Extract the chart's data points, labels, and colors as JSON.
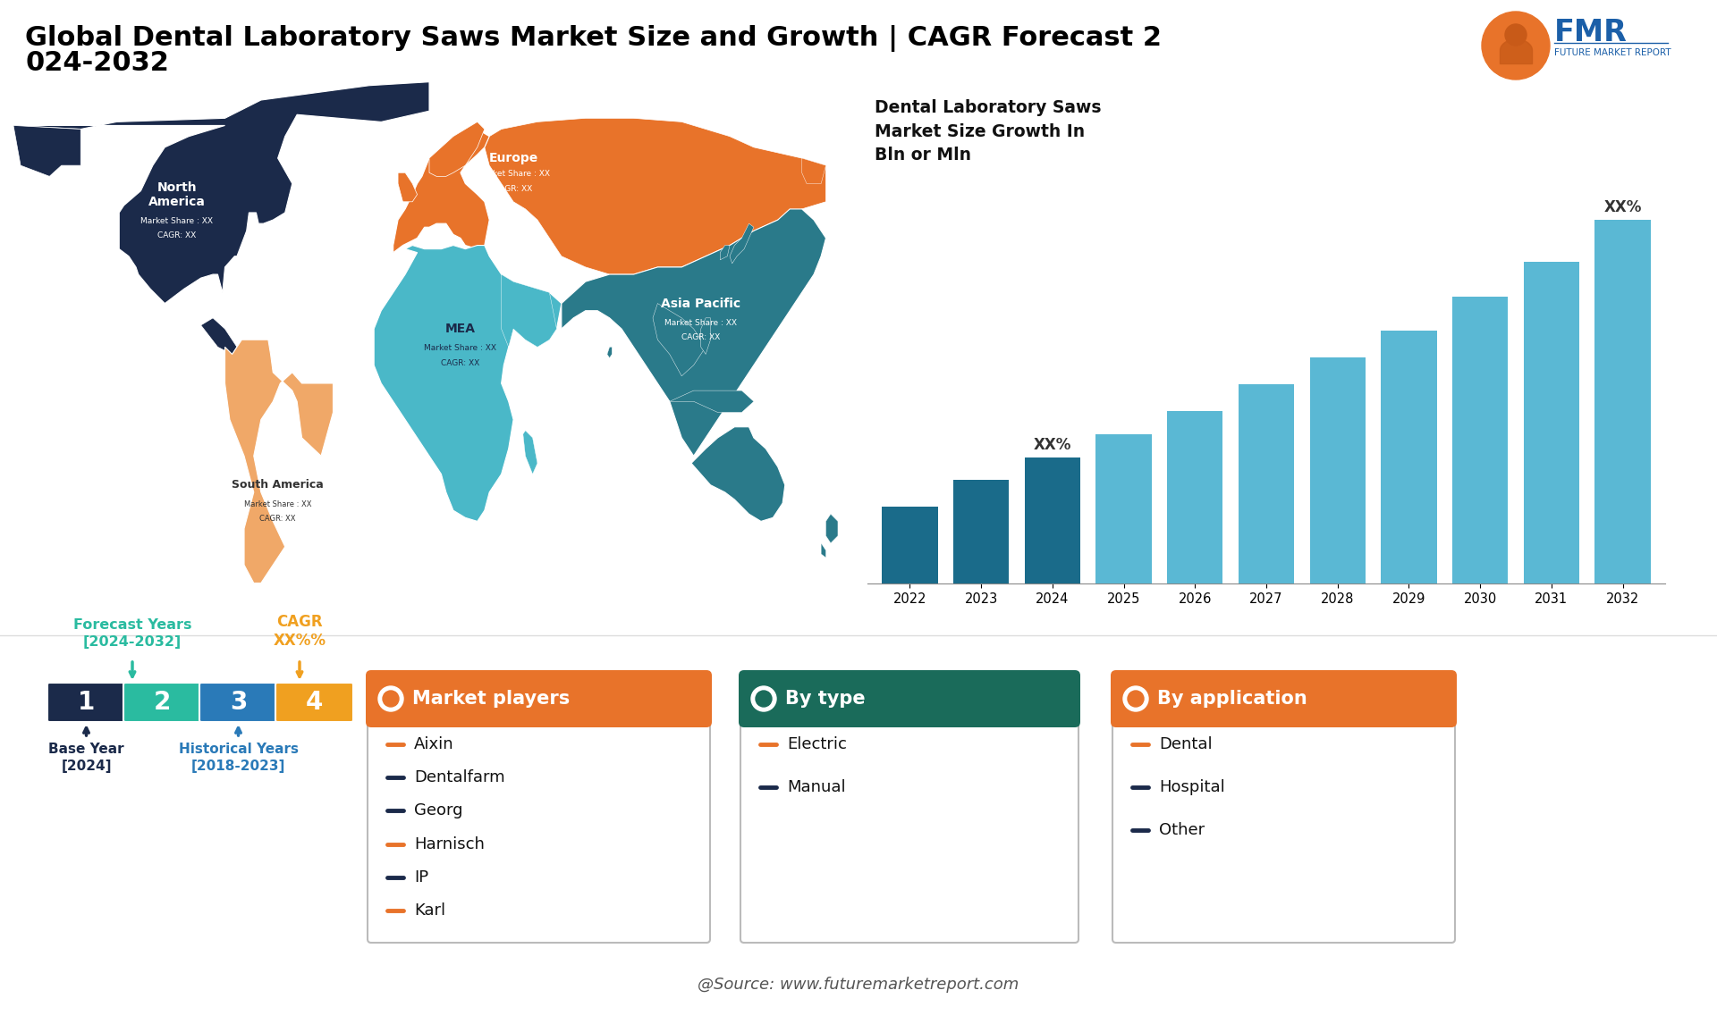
{
  "title_line1": "Global Dental Laboratory Saws Market Size and Growth | CAGR Forecast 2",
  "title_line2": "024-2032",
  "title_fontsize": 22,
  "background_color": "#ffffff",
  "bar_chart_title": "Dental Laboratory Saws\nMarket Size Growth In\nBln or Mln",
  "bar_years": [
    "2022",
    "2023",
    "2024",
    "2025",
    "2026",
    "2027",
    "2028",
    "2029",
    "2030",
    "2031",
    "2032"
  ],
  "bar_values": [
    1.0,
    1.35,
    1.65,
    1.95,
    2.25,
    2.6,
    2.95,
    3.3,
    3.75,
    4.2,
    4.75
  ],
  "bar_color_dark": "#1a6b8a",
  "bar_color_light": "#5ab8d4",
  "bar_label_2024": "XX%",
  "bar_label_2032": "XX%",
  "segment_headers": [
    "Market players",
    "By type",
    "By application"
  ],
  "segment_header_colors": [
    "#e8732a",
    "#1a6b5a",
    "#e8732a"
  ],
  "market_players": [
    "Aixin",
    "Dentalfarm",
    "Georg",
    "Harnisch",
    "IP",
    "Karl"
  ],
  "player_colors": [
    "#e8732a",
    "#1b2a4a",
    "#1b2a4a",
    "#e8732a",
    "#1b2a4a",
    "#e8732a"
  ],
  "by_type": [
    "Electric",
    "Manual"
  ],
  "type_colors": [
    "#e8732a",
    "#1b2a4a"
  ],
  "by_application": [
    "Dental",
    "Hospital",
    "Other"
  ],
  "app_colors": [
    "#e8732a",
    "#1b2a4a",
    "#1b2a4a"
  ],
  "timeline_colors": [
    "#1b2a4a",
    "#2abba0",
    "#2a7ab8",
    "#f0a020"
  ],
  "timeline_labels": [
    "1",
    "2",
    "3",
    "4"
  ],
  "base_year_label": "Base Year\n[2024]",
  "historical_label": "Historical Years\n[2018-2023]",
  "forecast_label": "Forecast Years\n[2024-2032]",
  "cagr_label": "CAGR\nXX%%",
  "source_text": "@Source: www.futuremarketreport.com",
  "fmr_text": "FMR",
  "future_market_text": "FUTURE MARKET REPORT",
  "na_color": "#1b2a4a",
  "sa_color": "#f0a868",
  "eu_color": "#e8732a",
  "mea_color": "#4ab8c8",
  "ap_color": "#2a7a8a"
}
